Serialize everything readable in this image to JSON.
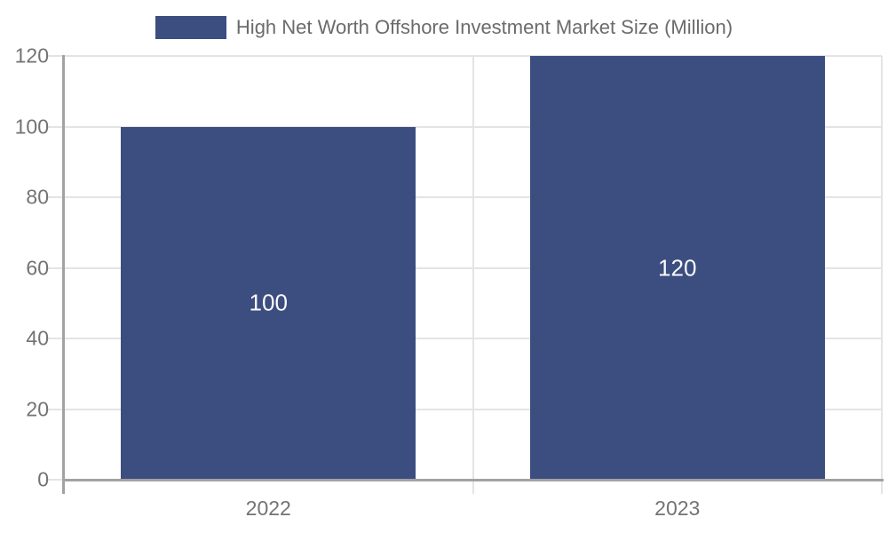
{
  "legend": {
    "label": "High Net Worth Offshore Investment Market Size (Million)"
  },
  "chart_data": {
    "type": "bar",
    "title": "High Net Worth Offshore Investment Market Size (Million)",
    "legend_label": "High Net Worth Offshore Investment Market Size (Million)",
    "legend_position": "top-center",
    "categories": [
      "2022",
      "2023"
    ],
    "values": [
      100,
      120
    ],
    "value_labels": [
      "100",
      "120"
    ],
    "xlabel": "",
    "ylabel": "",
    "ylim": [
      0,
      120
    ],
    "yticks": [
      0,
      20,
      40,
      60,
      80,
      100,
      120
    ],
    "grid": true,
    "colors": {
      "bar": "#3c4d7f",
      "grid": "#e4e4e4",
      "axis": "#a2a2a2",
      "tick_label": "#737373",
      "value_label": "#fafafa",
      "legend_text": "#6b6b6b",
      "background": "#ffffff"
    }
  }
}
